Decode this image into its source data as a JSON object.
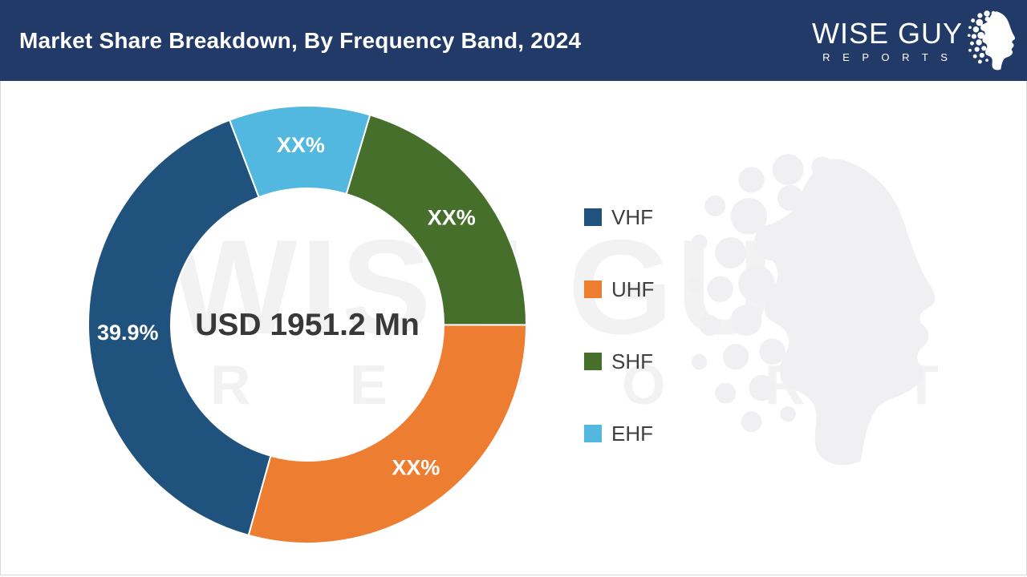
{
  "header": {
    "title": "Market Share Breakdown, By Frequency Band, 2024",
    "bg_color": "#213a67",
    "brand": {
      "name": "WISE GUY",
      "sub": "R E P O R T S"
    }
  },
  "watermark": {
    "line1": "WISE GUY",
    "line2": "R E P O R T S"
  },
  "chart_data": {
    "type": "pie",
    "subtype": "donut",
    "title": "Market Share Breakdown, By Frequency Band, 2024",
    "center_label": "USD 1951.2 Mn",
    "start_angle_deg": -20.8,
    "direction": "counterclockwise",
    "legend_position": "right",
    "segments": [
      {
        "name": "VHF",
        "value_pct": 39.9,
        "label": "39.9%",
        "color": "#1f527c"
      },
      {
        "name": "UHF",
        "value_pct": 29.3,
        "label": "XX%",
        "color": "#ed7d31"
      },
      {
        "name": "SHF",
        "value_pct": 20.4,
        "label": "XX%",
        "color": "#456f2a"
      },
      {
        "name": "EHF",
        "value_pct": 10.4,
        "label": "XX%",
        "color": "#53b8e0"
      }
    ]
  }
}
